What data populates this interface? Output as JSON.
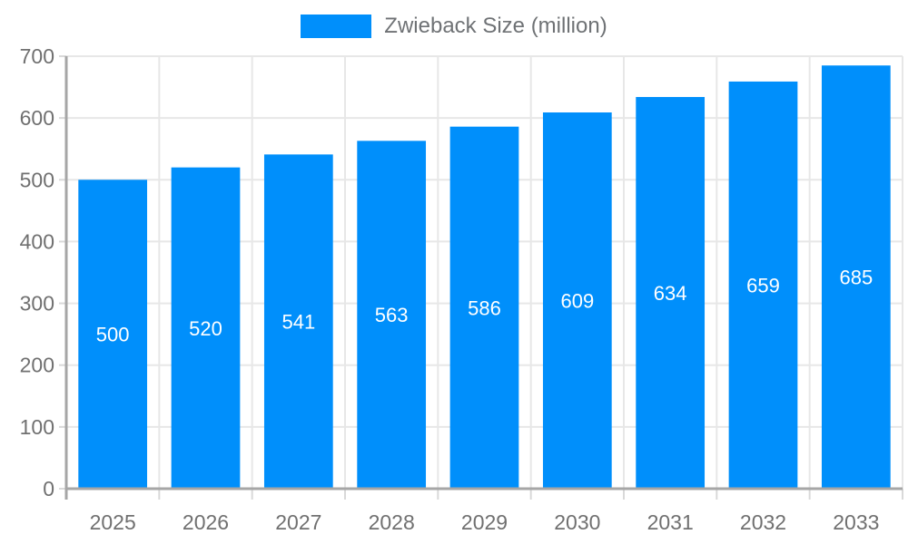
{
  "chart_data": {
    "type": "bar",
    "title": "",
    "legend": "Zwieback Size (million)",
    "legend_position": "top",
    "categories": [
      "2025",
      "2026",
      "2027",
      "2028",
      "2029",
      "2030",
      "2031",
      "2032",
      "2033"
    ],
    "series": [
      {
        "name": "Zwieback Size (million)",
        "values": [
          500,
          520,
          541,
          563,
          586,
          609,
          634,
          659,
          685
        ]
      }
    ],
    "xlabel": "",
    "ylabel": "",
    "ylim": [
      0,
      700
    ],
    "ytick_step": 100,
    "ytick_labels": [
      "0",
      "100",
      "200",
      "300",
      "400",
      "500",
      "600",
      "700"
    ],
    "grid": true,
    "bar_labels_inside": true,
    "colors": {
      "bar": "#008FFB",
      "bar_label": "#ffffff",
      "axis_line": "#a6a6a6",
      "gridline": "#e7e7e7",
      "tick": "#d9d9d9",
      "axis_text": "#707070",
      "legend_text": "#6f7275",
      "background": "#ffffff"
    }
  }
}
